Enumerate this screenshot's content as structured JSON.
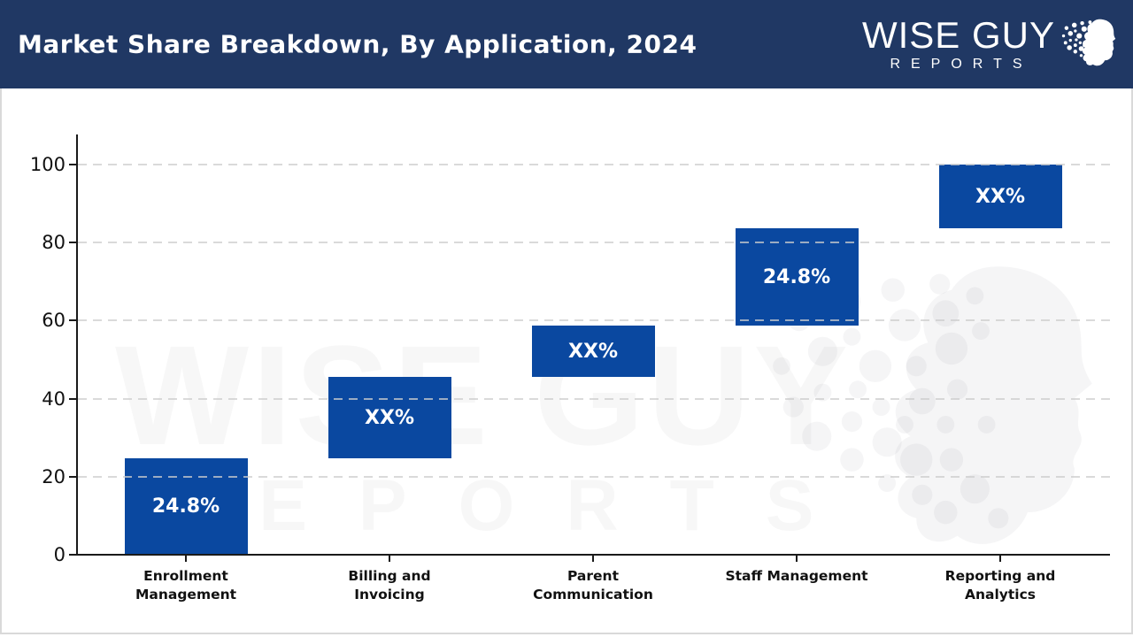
{
  "header": {
    "title": "Market Share Breakdown, By Application, 2024",
    "logo": {
      "name": "WISE GUY",
      "sub": "REPORTS"
    }
  },
  "watermark": {
    "name": "WISE GUY",
    "sub": "REPORTS"
  },
  "colors": {
    "header_bg": "#203864",
    "bar": "#0a48a0",
    "bar_label_text": "#ffffff",
    "grid": "#d9d9d9",
    "axis": "#1a1a1a",
    "tick_label_text": "#111111"
  },
  "chart_data": {
    "type": "bar",
    "subtype": "waterfall",
    "title": "Market Share Breakdown, By Application, 2024",
    "xlabel": "",
    "ylabel": "",
    "ylim": [
      0,
      107
    ],
    "yticks": [
      0,
      20,
      40,
      60,
      80,
      100
    ],
    "grid": "horizontal-dashed",
    "legend": null,
    "categories": [
      "Enrollment Management",
      "Billing and Invoicing",
      "Parent Communication",
      "Staff Management",
      "Reporting and Analytics"
    ],
    "category_label_lines": [
      [
        "Enrollment",
        "Management"
      ],
      [
        "Billing and",
        "Invoicing"
      ],
      [
        "Parent",
        "Communication"
      ],
      [
        "Staff Management"
      ],
      [
        "Reporting and",
        "Analytics"
      ]
    ],
    "segments": [
      {
        "category": "Enrollment Management",
        "start": 0,
        "end": 24.8,
        "value": 24.8,
        "label": "24.8%"
      },
      {
        "category": "Billing and Invoicing",
        "start": 24.8,
        "end": 45.5,
        "value": 20.7,
        "label": "XX%"
      },
      {
        "category": "Parent Communication",
        "start": 45.5,
        "end": 58.8,
        "value": 13.3,
        "label": "XX%"
      },
      {
        "category": "Staff Management",
        "start": 58.8,
        "end": 83.6,
        "value": 24.8,
        "label": "24.8%"
      },
      {
        "category": "Reporting and Analytics",
        "start": 83.6,
        "end": 100,
        "value": 16.4,
        "label": "XX%"
      }
    ]
  }
}
